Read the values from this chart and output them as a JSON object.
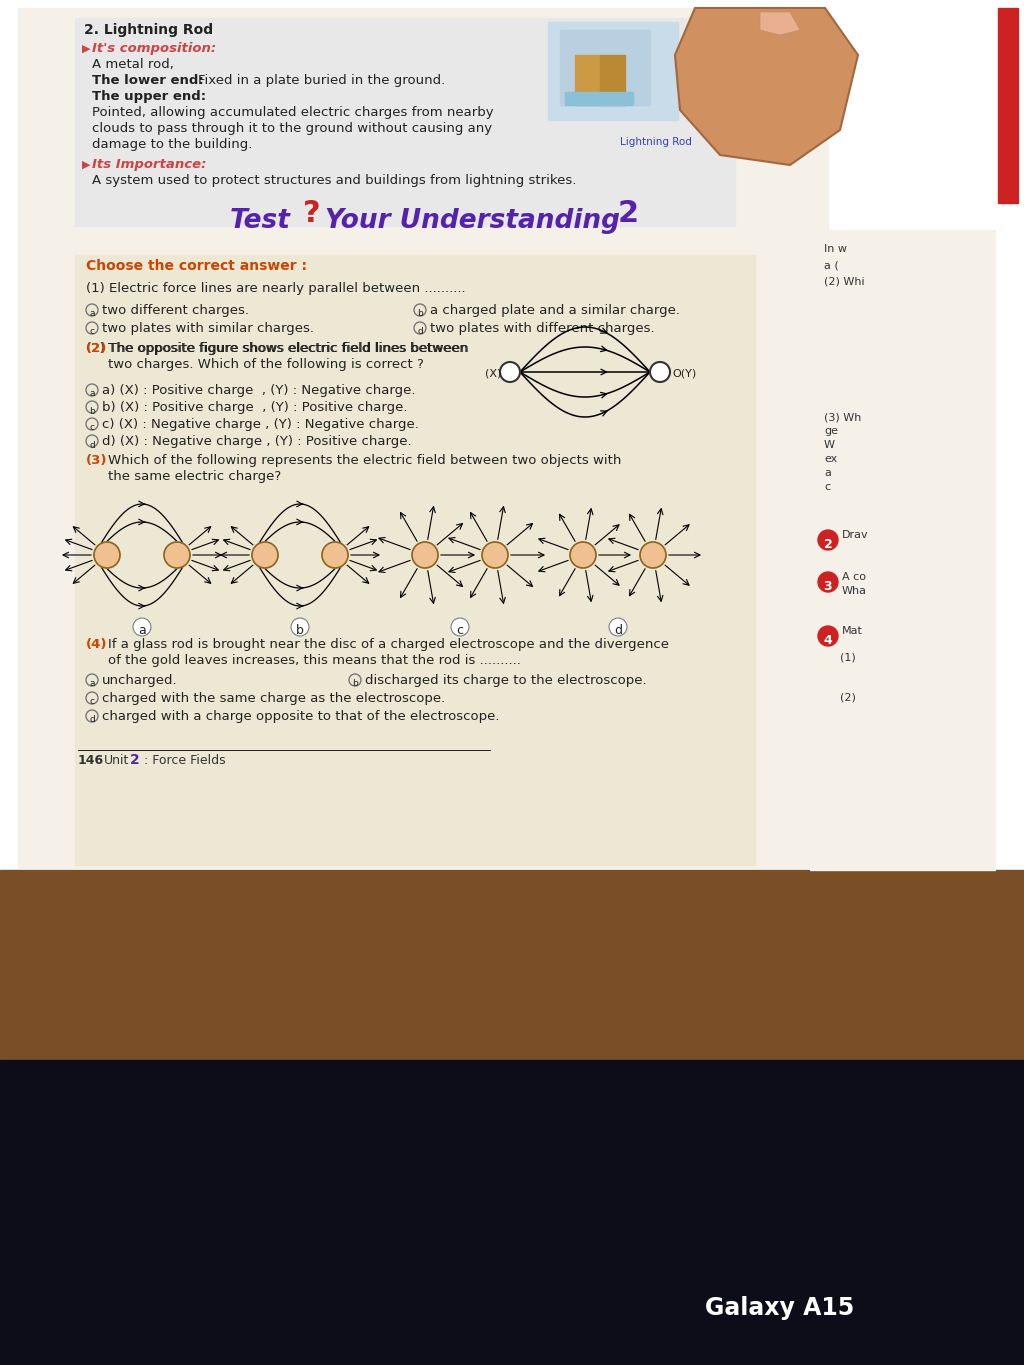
{
  "page_bg": "#f4f0e6",
  "top_section_bg": "#e8e8e8",
  "q_section_bg": "#ede8d4",
  "wood_color": "#8B5C30",
  "dark_bag": "#111122",
  "title_section": "2. Lightning Rod",
  "test_title_color": "#5522aa",
  "q_num_color": "#cc4400",
  "choose_color": "#cc4400",
  "sidebar_text_color": "#333333",
  "watermark": "Galaxy A15",
  "red_bookmark": "#cc2222",
  "footer_text": "146",
  "footer_unit": "Unit",
  "footer_num": "2",
  "footer_rest": " : Force Fields",
  "q1_text": "(1) Electric force lines are nearly parallel between ..........",
  "q1_a": "two different charges.",
  "q1_b": "a charged plate and a similar charge.",
  "q1_c": "two plates with similar charges.",
  "q1_d": "two plates with different charges.",
  "q2_intro1": "(2) The opposite figure shows electric field lines between",
  "q2_intro2": "    two charges. Which of the following is correct ?",
  "q2_a": "a) (X) : Positive charge  , (Y) : Negative charge.",
  "q2_b": "b) (X) : Positive charge  , (Y) : Positive charge.",
  "q2_c": "c) (X) : Negative charge , (Y) : Negative charge.",
  "q2_d": "d) (X) : Negative charge , (Y) : Positive charge.",
  "q3_intro1": "(3) Which of the following represents the electric field between two objects with",
  "q3_intro2": "    the same electric charge?",
  "q4_intro1": "(4) If a glass rod is brought near the disc of a charged electroscope and the divergence",
  "q4_intro2": "    of the gold leaves increases, this means that the rod is ..........",
  "q4_a": "uncharged.",
  "q4_b": "discharged its charge to the electroscope.",
  "q4_c": "charged with the same charge as the electroscope.",
  "q4_d": "charged with a charge opposite to that of the electroscope."
}
